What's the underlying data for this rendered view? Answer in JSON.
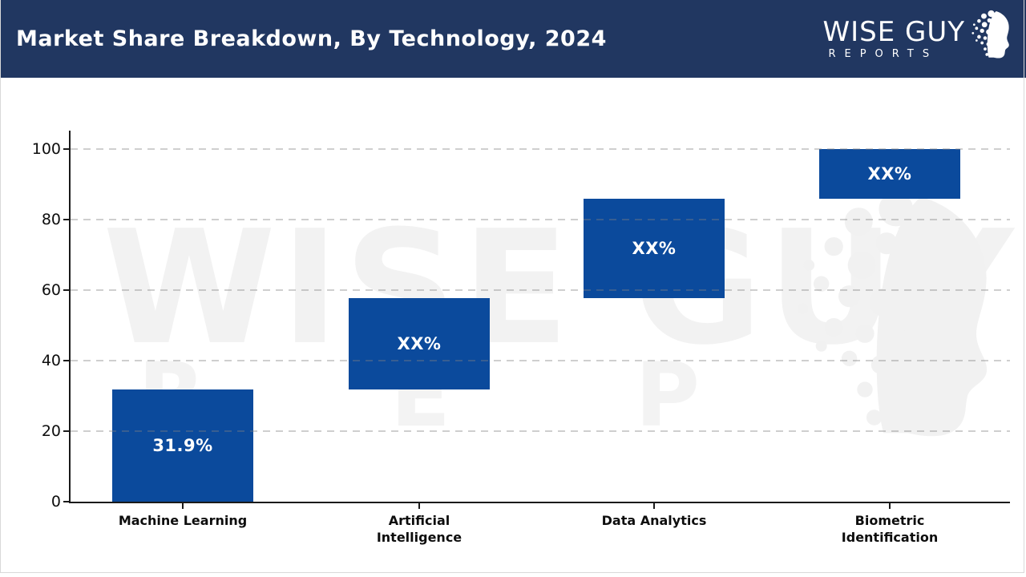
{
  "header": {
    "title": "Market Share Breakdown, By Technology, 2024",
    "logo": {
      "line1": "WISE GUY",
      "line2": "REPORTS"
    }
  },
  "watermark": {
    "line1": "WISE GUY",
    "line2": "R E P O R T S"
  },
  "colors": {
    "header_bg": "#213761",
    "bar": "#0b4a9c",
    "grid": "#808080",
    "axis": "#1a1a1a",
    "bar_label": "#ffffff",
    "watermark": "#f1f1f1"
  },
  "chart_data": {
    "type": "bar",
    "subtype": "waterfall",
    "title": "Market Share Breakdown, By Technology, 2024",
    "xlabel": "",
    "ylabel": "",
    "ylim": [
      0,
      100
    ],
    "yticks": [
      0,
      20,
      40,
      60,
      80,
      100
    ],
    "grid": true,
    "grid_style": "dashed",
    "legend": "none",
    "categories": [
      "Machine Learning",
      "Artificial\nIntelligence",
      "Data Analytics",
      "Biometric\nIdentification"
    ],
    "series": [
      {
        "name": "Market Share",
        "segments": [
          {
            "category": "Machine Learning",
            "start": 0,
            "end": 31.9,
            "label": "31.9%"
          },
          {
            "category": "Artificial Intelligence",
            "start": 31.9,
            "end": 57.8,
            "label": "XX%"
          },
          {
            "category": "Data Analytics",
            "start": 57.8,
            "end": 86.0,
            "label": "XX%"
          },
          {
            "category": "Biometric Identification",
            "start": 86.0,
            "end": 100.0,
            "label": "XX%"
          }
        ]
      }
    ]
  }
}
